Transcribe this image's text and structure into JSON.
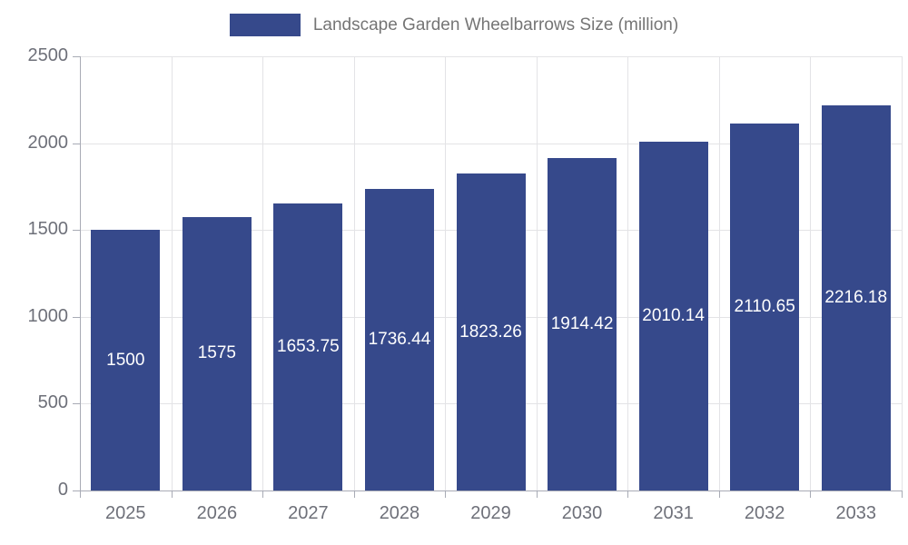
{
  "legend": {
    "label": "Landscape Garden Wheelbarrows Size (million)"
  },
  "colors": {
    "bar": "#36498B",
    "grid": "#e3e3e6",
    "axis": "#a8abb5",
    "tick_label": "#6E7079",
    "legend_text": "#757575",
    "value_label": "#ffffff",
    "background": "#ffffff"
  },
  "chart_data": {
    "type": "bar",
    "title": "Landscape Garden Wheelbarrows Size (million)",
    "categories": [
      "2025",
      "2026",
      "2027",
      "2028",
      "2029",
      "2030",
      "2031",
      "2032",
      "2033"
    ],
    "values": [
      1500,
      1575,
      1653.75,
      1736.44,
      1823.26,
      1914.42,
      2010.14,
      2110.65,
      2216.18
    ],
    "value_labels": [
      "1500",
      "1575",
      "1653.75",
      "1736.44",
      "1823.26",
      "1914.42",
      "2010.14",
      "2110.65",
      "2216.18"
    ],
    "xlabel": "",
    "ylabel": "",
    "ylim": [
      0,
      2500
    ],
    "yticks": [
      0,
      500,
      1000,
      1500,
      2000,
      2500
    ],
    "grid": true,
    "legend_position": "top",
    "value_label_position": "center-of-bar"
  }
}
